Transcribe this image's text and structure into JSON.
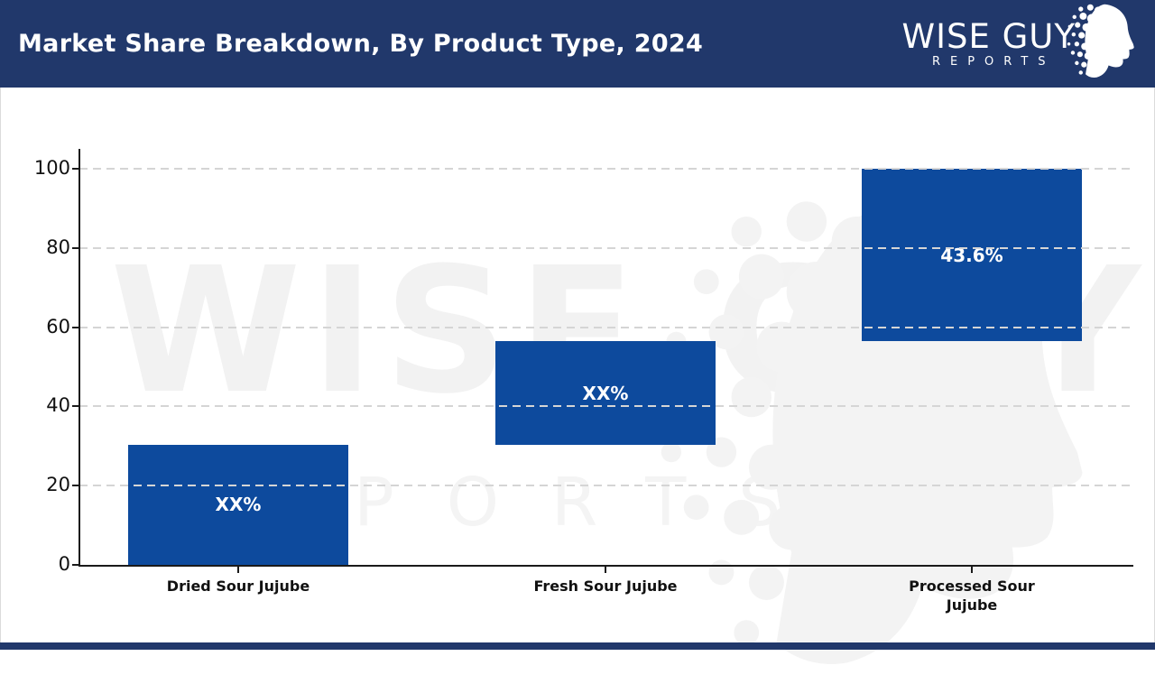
{
  "header": {
    "title": "Market Share Breakdown, By Product Type, 2024",
    "logo": {
      "line1": "WISE GUY",
      "line2": "REPORTS"
    }
  },
  "watermark": {
    "line1": "WISE GUY",
    "line2": "REPORTS"
  },
  "chart_data": {
    "type": "bar",
    "subtype": "floating-segment (waterfall-style market share, segments sum to 100%)",
    "title": "Market Share Breakdown, By Product Type, 2024",
    "categories": [
      "Dried Sour Jujube",
      "Fresh Sour Jujube",
      "Processed Sour Jujube"
    ],
    "segments": [
      {
        "category": "Dried Sour Jujube",
        "start": 0,
        "end": 30.3,
        "value": 30.3,
        "label": "XX%"
      },
      {
        "category": "Fresh Sour Jujube",
        "start": 30.3,
        "end": 56.4,
        "value": 26.1,
        "label": "XX%"
      },
      {
        "category": "Processed Sour Jujube",
        "start": 56.4,
        "end": 100,
        "value": 43.6,
        "label": "43.6%"
      }
    ],
    "yticks": [
      0,
      20,
      40,
      60,
      80,
      100
    ],
    "ylim": [
      0,
      105
    ],
    "xlabel": "",
    "ylabel": "",
    "grid": "horizontal dashed, drawn over bars",
    "legend": "none",
    "bar_color": "#0D4A9D",
    "grid_color": "#D5D5D5",
    "axis_color": "#1A1A1A",
    "label_color_on_bar": "#FFFFFF"
  },
  "colors": {
    "header_bg": "#21386B",
    "footer_bg": "#21386B",
    "background": "#FFFFFF",
    "watermark": "#F2F2F2"
  }
}
